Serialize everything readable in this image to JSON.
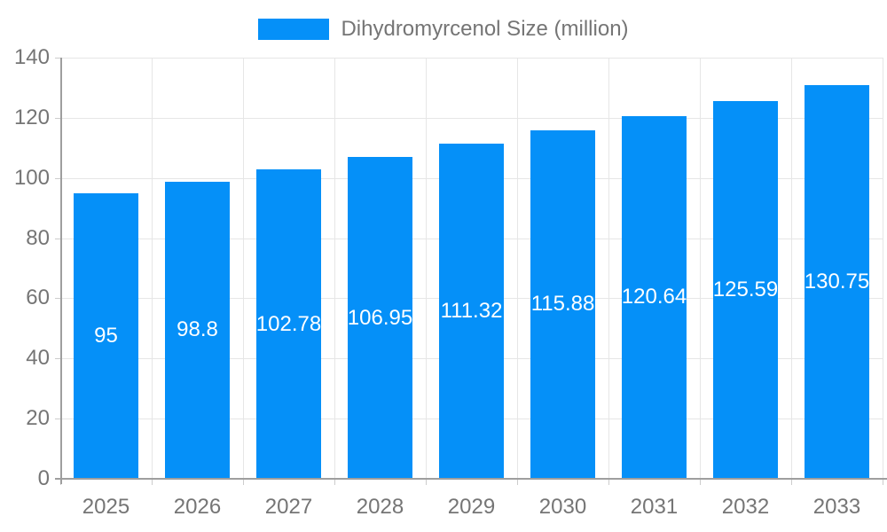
{
  "chart_data": {
    "type": "bar",
    "title": "",
    "legend": "Dihydromyrcenol Size (million)",
    "legend_position": "top",
    "categories": [
      "2025",
      "2026",
      "2027",
      "2028",
      "2029",
      "2030",
      "2031",
      "2032",
      "2033"
    ],
    "series": [
      {
        "name": "Dihydromyrcenol Size (million)",
        "values": [
          95,
          98.8,
          102.78,
          106.95,
          111.32,
          115.88,
          120.64,
          125.59,
          130.75
        ]
      }
    ],
    "value_labels": [
      "95",
      "98.8",
      "102.78",
      "106.95",
      "111.32",
      "115.88",
      "120.64",
      "125.59",
      "130.75"
    ],
    "xlabel": "",
    "ylabel": "",
    "ylim": [
      0,
      140
    ],
    "ytick_step": 20,
    "yticks": [
      0,
      20,
      40,
      60,
      80,
      100,
      120,
      140
    ],
    "grid": true,
    "colors": {
      "bar": "#0590f8",
      "axis_text": "#757575",
      "bar_label_text": "#ffffff",
      "gridline": "#e6e6e6",
      "axis_line": "#9e9e9e",
      "tick": "#cccccc",
      "background": "#ffffff"
    }
  }
}
